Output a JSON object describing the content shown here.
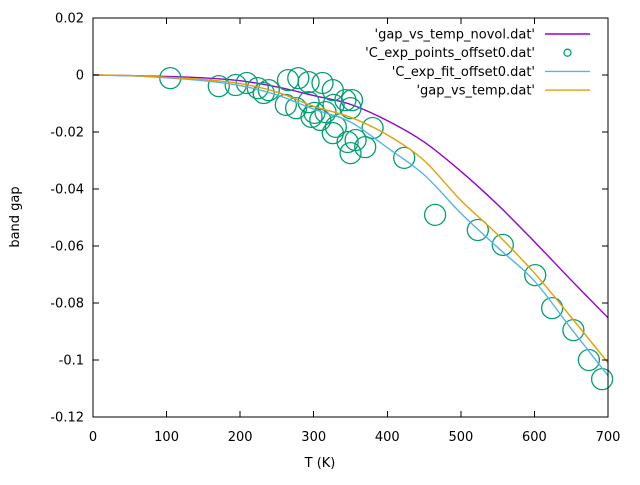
{
  "chart_data": {
    "type": "line",
    "title": "",
    "xlabel": "T (K)",
    "ylabel": "band gap",
    "xlim": [
      0,
      700
    ],
    "ylim": [
      -0.12,
      0.02
    ],
    "grid": false,
    "legend_position": "top-right-inside",
    "background_color": "#ffffff",
    "axis_color": "#000000",
    "xticks": {
      "values": [
        0,
        100,
        200,
        300,
        400,
        500,
        600,
        700
      ],
      "labels": [
        "0",
        "100",
        "200",
        "300",
        "400",
        "500",
        "600",
        "700"
      ]
    },
    "yticks": {
      "values": [
        0.02,
        0,
        -0.02,
        -0.04,
        -0.06,
        -0.08,
        -0.1,
        -0.12
      ],
      "labels": [
        "0.02",
        "0",
        "-0.02",
        "-0.04",
        "-0.06",
        "-0.08",
        "-0.1",
        "-0.12"
      ]
    },
    "series": [
      {
        "name": "'gap_vs_temp_novol.dat'",
        "type": "line",
        "color": "#9400d3",
        "x": [
          0,
          50,
          100,
          150,
          200,
          250,
          300,
          350,
          400,
          450,
          500,
          550,
          600,
          650,
          700
        ],
        "y": [
          0,
          -0.0002,
          -0.0005,
          -0.001,
          -0.002,
          -0.0042,
          -0.0072,
          -0.0103,
          -0.016,
          -0.0235,
          -0.0338,
          -0.0455,
          -0.0585,
          -0.072,
          -0.0852
        ]
      },
      {
        "name": "'C_exp_points_offset0.dat'",
        "type": "scatter",
        "marker": "open-circle",
        "color": "#009e73",
        "points": [
          [
            105,
            -0.0011
          ],
          [
            171,
            -0.0039
          ],
          [
            194,
            -0.0035
          ],
          [
            209,
            -0.0028
          ],
          [
            224,
            -0.0046
          ],
          [
            232,
            -0.0063
          ],
          [
            239,
            -0.0053
          ],
          [
            262,
            -0.0105
          ],
          [
            265,
            -0.0018
          ],
          [
            276,
            -0.0116
          ],
          [
            279,
            -0.0011
          ],
          [
            293,
            -0.0025
          ],
          [
            293,
            -0.0095
          ],
          [
            297,
            -0.0147
          ],
          [
            301,
            -0.0133
          ],
          [
            309,
            -0.0158
          ],
          [
            312,
            -0.0028
          ],
          [
            316,
            -0.013
          ],
          [
            326,
            -0.0053
          ],
          [
            326,
            -0.0204
          ],
          [
            327,
            -0.0105
          ],
          [
            330,
            -0.0182
          ],
          [
            343,
            -0.0088
          ],
          [
            346,
            -0.0235
          ],
          [
            350,
            -0.0116
          ],
          [
            350,
            -0.0274
          ],
          [
            352,
            -0.0088
          ],
          [
            357,
            -0.0228
          ],
          [
            370,
            -0.0253
          ],
          [
            380,
            -0.0186
          ],
          [
            423,
            -0.0291
          ],
          [
            465,
            -0.0491
          ],
          [
            523,
            -0.0544
          ],
          [
            557,
            -0.0596
          ],
          [
            601,
            -0.0702
          ],
          [
            624,
            -0.0818
          ],
          [
            653,
            -0.0895
          ],
          [
            674,
            -0.1
          ],
          [
            692,
            -0.1067
          ]
        ]
      },
      {
        "name": "'C_exp_fit_offset0.dat'",
        "type": "line",
        "color": "#56b4e9",
        "x": [
          0,
          50,
          100,
          150,
          200,
          250,
          300,
          350,
          400,
          450,
          500,
          550,
          600,
          650,
          700
        ],
        "y": [
          0,
          -0.0003,
          -0.001,
          -0.002,
          -0.0037,
          -0.007,
          -0.012,
          -0.0165,
          -0.0255,
          -0.035,
          -0.0485,
          -0.0605,
          -0.0723,
          -0.089,
          -0.1055
        ]
      },
      {
        "name": "'gap_vs_temp.dat'",
        "type": "line",
        "color": "#e69f00",
        "x": [
          0,
          50,
          100,
          150,
          200,
          250,
          300,
          350,
          400,
          450,
          500,
          550,
          600,
          650,
          700
        ],
        "y": [
          0,
          -0.0002,
          -0.0008,
          -0.0016,
          -0.003,
          -0.006,
          -0.011,
          -0.0148,
          -0.021,
          -0.03,
          -0.044,
          -0.056,
          -0.0695,
          -0.085,
          -0.101
        ]
      }
    ]
  }
}
